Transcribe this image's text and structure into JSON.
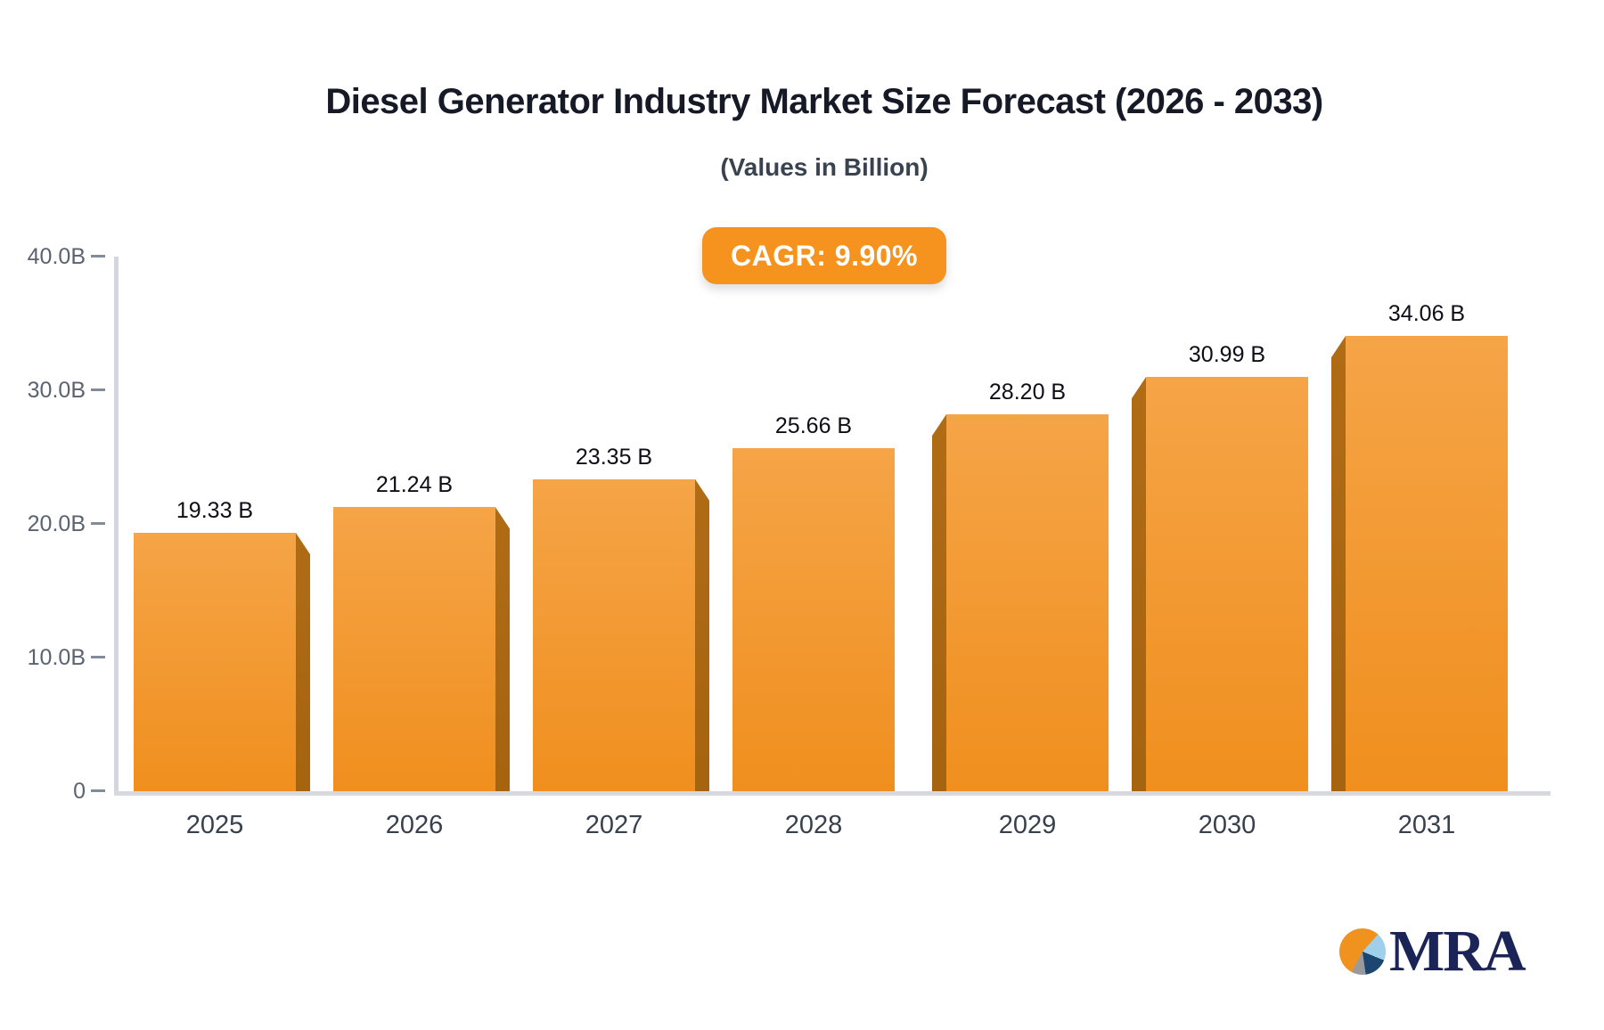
{
  "chart_data": {
    "type": "bar",
    "title": "Diesel Generator Industry Market Size Forecast (2026 - 2033)",
    "subtitle": "(Values in Billion)",
    "cagr_label": "CAGR: 9.90%",
    "categories": [
      "2025",
      "2026",
      "2027",
      "2028",
      "2029",
      "2030",
      "2031"
    ],
    "values": [
      19.33,
      21.24,
      23.35,
      25.66,
      28.2,
      30.99,
      34.06
    ],
    "bar_labels": [
      "19.33 B",
      "21.24 B",
      "23.35 B",
      "25.66 B",
      "28.20 B",
      "30.99 B",
      "34.06 B"
    ],
    "xlabel": "",
    "ylabel": "",
    "ylim": [
      0,
      40
    ],
    "yticks": [
      {
        "value": 40,
        "label": "40.0B"
      },
      {
        "value": 30,
        "label": "30.0B"
      },
      {
        "value": 20,
        "label": "20.0B"
      },
      {
        "value": 10,
        "label": "10.0B"
      },
      {
        "value": 0,
        "label": "0"
      }
    ],
    "grid": false,
    "legend": false,
    "bar_style": "3d-perspective-center"
  },
  "logo": {
    "text": "MRA",
    "icon": "pie-chart-icon"
  },
  "colors": {
    "title": "#161926",
    "subtitle": "#39424F",
    "badge_bg": "#F6921E",
    "bar_top": "#F5A447",
    "bar_bottom": "#F08F1E",
    "bar_side": "#B06C15",
    "bar_side_dark": "#A66310",
    "axis_line": "#D4D6DC",
    "baseline": "#D8D9DE",
    "tick_dash": "#828B99",
    "y_label": "#5A6370",
    "x_label": "#37414D",
    "value_label": "#0E0E16",
    "logo_navy": "#1A2456",
    "pie_orange": "#F0921E",
    "pie_light_blue": "#9FCFEA",
    "pie_dark_blue": "#1C4670",
    "pie_gray": "#9A9A9E"
  }
}
